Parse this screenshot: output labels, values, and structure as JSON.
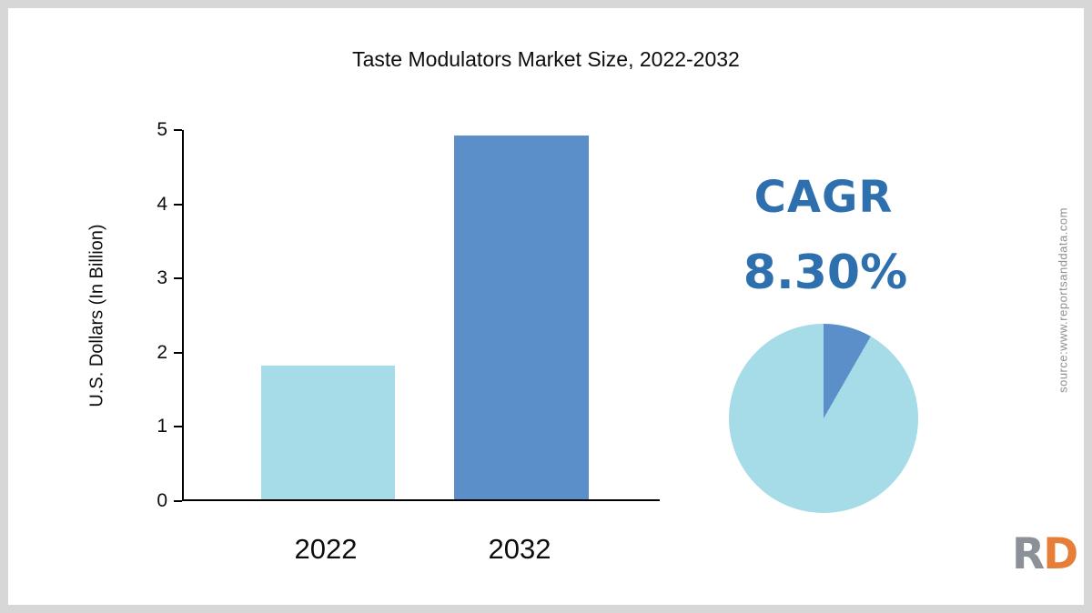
{
  "page": {
    "source_credit": "source:www.reportsanddata.com",
    "logo": {
      "r": "R",
      "d": "D"
    },
    "frame_color": "#d7d7d7"
  },
  "cagr": {
    "label": "CAGR",
    "value": "8.30%",
    "color": "#2e6fad"
  },
  "chart_data": [
    {
      "type": "bar",
      "title": "Taste Modulators Market Size, 2022-2032",
      "categories": [
        "2022",
        "2032"
      ],
      "values": [
        1.8,
        4.9
      ],
      "ylabel": "U.S. Dollars (In Billion)",
      "xlabel": "",
      "ylim": [
        0,
        5
      ],
      "yticks": [
        0,
        1,
        2,
        3,
        4,
        5
      ],
      "bar_colors": [
        "#a6dbe8",
        "#5b8fc9"
      ],
      "axis_color": "#000000",
      "grid": false,
      "legend": "none"
    },
    {
      "type": "pie",
      "values": [
        8.3,
        91.7
      ],
      "colors": [
        "#5b8fc9",
        "#a6dbe8"
      ],
      "start_angle": "top",
      "direction": "clockwise"
    }
  ]
}
